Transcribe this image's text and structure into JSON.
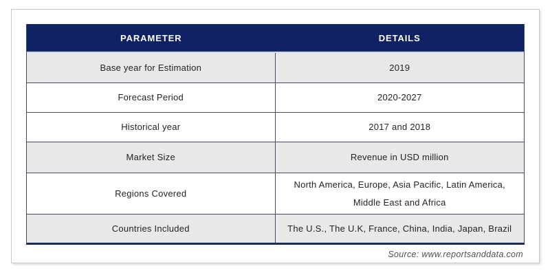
{
  "theme": {
    "header_bg": "#0e2264",
    "shaded_row": "#e8e8e8",
    "row_border": "#474d5e",
    "col_border": "#3f4a66",
    "bottom_border": "#1d2b5c",
    "header_sep": "#cfd9ec",
    "frame_border": "#c9c9c9",
    "cell_text": "#232323",
    "source_text": "#4f4f4f"
  },
  "table": {
    "columns": [
      "PARAMETER",
      "DETAILS"
    ],
    "rows": [
      {
        "parameter": "Base year for Estimation",
        "details": "2019"
      },
      {
        "parameter": "Forecast Period",
        "details": "2020-2027"
      },
      {
        "parameter": "Historical year",
        "details": "2017 and 2018"
      },
      {
        "parameter": "Market Size",
        "details": "Revenue in USD million"
      },
      {
        "parameter": "Regions Covered",
        "details": "North America, Europe, Asia Pacific, Latin America, Middle East and Africa"
      },
      {
        "parameter": "Countries Included",
        "details": "The U.S., The  U.K, France, China, India, Japan, Brazil"
      }
    ]
  },
  "footer": {
    "source_text": "Source: www.reportsanddata.com"
  }
}
